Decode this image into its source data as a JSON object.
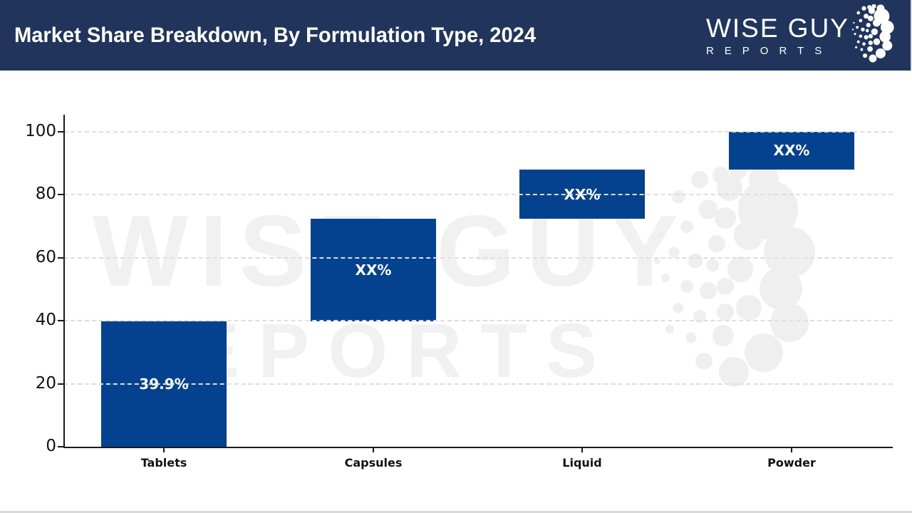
{
  "header": {
    "title": "Market Share Breakdown, By Formulation Type, 2024",
    "logo": {
      "wordmark": "WISE GUY",
      "subtext": "REPORTS"
    }
  },
  "watermark": {
    "line1": "WISE GUY",
    "line2": "REPORTS"
  },
  "chart_data": {
    "type": "bar",
    "subtype": "waterfall",
    "title": "Market Share Breakdown, By Formulation Type, 2024",
    "categories": [
      "Tablets",
      "Capsules",
      "Liquid",
      "Powder"
    ],
    "bars": [
      {
        "category": "Tablets",
        "start": 0,
        "end": 39.9,
        "value": 39.9,
        "label": "39.9%"
      },
      {
        "category": "Capsules",
        "start": 39.9,
        "end": 72.3,
        "value": 32.4,
        "label": "XX%"
      },
      {
        "category": "Liquid",
        "start": 72.3,
        "end": 88.1,
        "value": 15.8,
        "label": "XX%"
      },
      {
        "category": "Powder",
        "start": 88.1,
        "end": 100,
        "value": 11.9,
        "label": "XX%"
      }
    ],
    "ylim": [
      0,
      100
    ],
    "yticks": [
      0,
      20,
      40,
      60,
      80,
      100
    ],
    "xlabel": "",
    "ylabel": "",
    "grid": "dashed-horizontal-on-top",
    "legend": "none",
    "bar_color": "#04418f",
    "bar_label_color": "#ffffff"
  },
  "colors": {
    "header_bg": "#21345c",
    "header_text": "#ffffff",
    "bar": "#04418f",
    "axis": "#1a1a1a",
    "gridline": "#dedede",
    "watermark": "#f1f1f1",
    "page_bg": "#ffffff"
  }
}
